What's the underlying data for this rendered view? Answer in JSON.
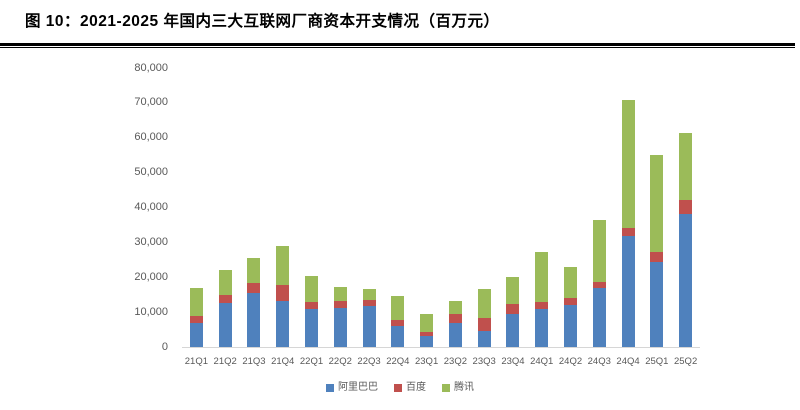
{
  "figure": {
    "title": "图 10：2021-2025 年国内三大互联网厂商资本开支情况（百万元）"
  },
  "colors": {
    "alibaba": "#4F81BD",
    "baidu": "#C0504D",
    "tencent": "#9BBB59",
    "axis_text": "#595959",
    "axis_line": "#D6D6D6",
    "title_text": "#000000",
    "rule": "#000000"
  },
  "chart_data": {
    "type": "bar",
    "stacked": true,
    "title": "图 10：2021-2025 年国内三大互联网厂商资本开支情况（百万元）",
    "unit": "百万元",
    "grid": false,
    "legend_position": "bottom",
    "ylim": [
      0,
      80000
    ],
    "ytick_interval": 10000,
    "ytick_labels": [
      "0",
      "10,000",
      "20,000",
      "30,000",
      "40,000",
      "50,000",
      "60,000",
      "70,000",
      "80,000"
    ],
    "categories": [
      "21Q1",
      "21Q2",
      "21Q3",
      "21Q4",
      "22Q1",
      "22Q2",
      "22Q3",
      "22Q4",
      "23Q1",
      "23Q2",
      "23Q3",
      "23Q4",
      "24Q1",
      "24Q2",
      "24Q3",
      "24Q4",
      "25Q1",
      "25Q2"
    ],
    "series": [
      {
        "name": "阿里巴巴",
        "key": "alibaba",
        "color": "#4F81BD",
        "values": [
          7000,
          12500,
          15400,
          13300,
          11000,
          11300,
          11800,
          6100,
          3200,
          6800,
          4700,
          9400,
          10800,
          11900,
          16900,
          31700,
          24500,
          38100
        ]
      },
      {
        "name": "百度",
        "key": "baidu",
        "color": "#C0504D",
        "values": [
          1900,
          2400,
          2900,
          4500,
          1900,
          1900,
          1700,
          1700,
          1200,
          2800,
          3700,
          2900,
          2000,
          2200,
          1700,
          2400,
          2800,
          4100
        ]
      },
      {
        "name": "腾讯",
        "key": "tencent",
        "color": "#9BBB59",
        "values": [
          8100,
          7100,
          7300,
          11200,
          7600,
          3900,
          3100,
          6700,
          5000,
          3600,
          8100,
          7700,
          14500,
          8900,
          17700,
          36700,
          27700,
          19300
        ]
      }
    ]
  }
}
